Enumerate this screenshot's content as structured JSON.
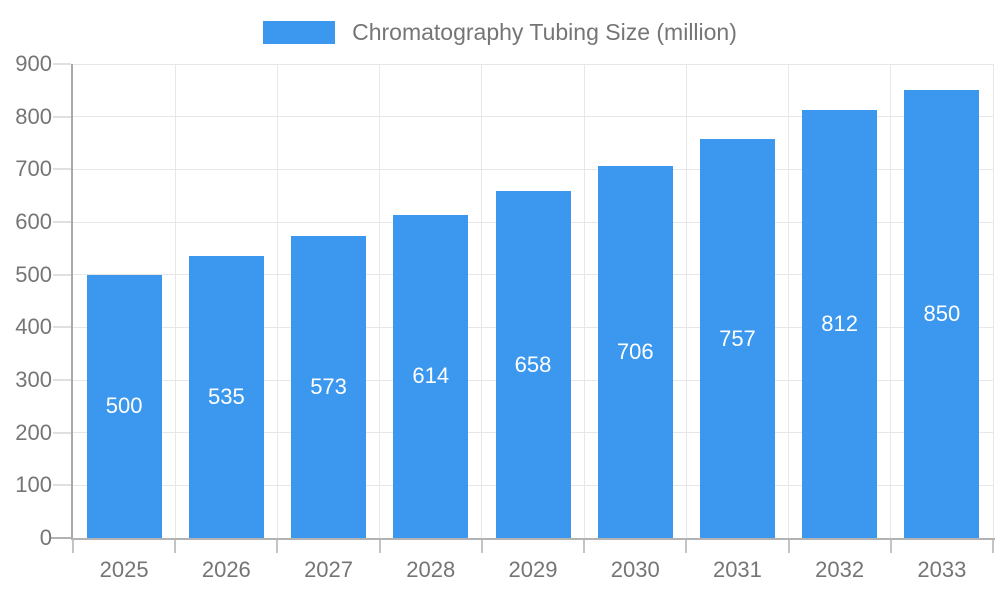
{
  "chart_data": {
    "type": "bar",
    "title": "Chromatography Tubing Size (million)",
    "categories": [
      "2025",
      "2026",
      "2027",
      "2028",
      "2029",
      "2030",
      "2031",
      "2032",
      "2033"
    ],
    "values": [
      500,
      535,
      573,
      614,
      658,
      706,
      757,
      812,
      850
    ],
    "value_labels": [
      "500",
      "535",
      "573",
      "614",
      "658",
      "706",
      "757",
      "812",
      "850"
    ],
    "xlabel": "",
    "ylabel": "",
    "ylim": [
      0,
      900
    ],
    "ytick_labels": [
      "0",
      "100",
      "200",
      "300",
      "400",
      "500",
      "600",
      "700",
      "800",
      "900"
    ],
    "grid": "on",
    "legend_position": "top-center",
    "bar_color": "#3b98ee",
    "value_label_color": "#ffffff",
    "axis_text_color": "#757575",
    "grid_color": "#e7e7e7",
    "axis_line_color": "#a9a9a9",
    "baseline_color": "#b3b3b3",
    "tick_color": "#c4c4c4"
  }
}
